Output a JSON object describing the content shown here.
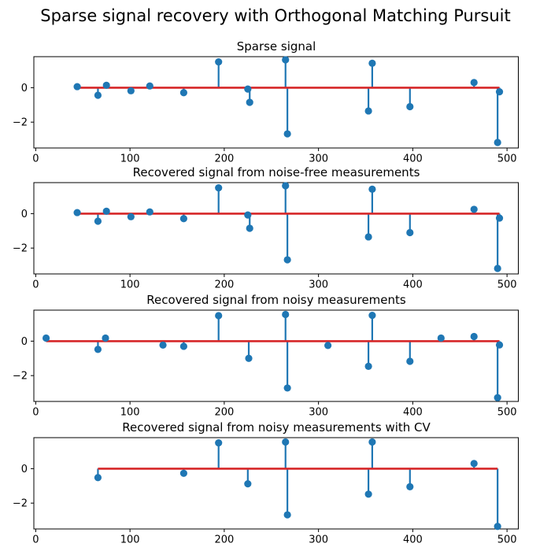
{
  "figure": {
    "suptitle": "Sparse signal recovery with Orthogonal Matching Pursuit"
  },
  "colors": {
    "stem": "#1f77b4",
    "baseline": "#d62728",
    "spine": "#000000"
  },
  "chart_data": [
    {
      "type": "scatter",
      "subtype": "stem",
      "title": "Sparse signal",
      "xlabel": "",
      "ylabel": "",
      "xlim": [
        -2,
        512
      ],
      "ylim": [
        -3.5,
        1.8
      ],
      "grid": false,
      "xticks": {
        "values": [
          0,
          100,
          200,
          300,
          400,
          500
        ],
        "labels": [
          "0",
          "100",
          "200",
          "300",
          "400",
          "500"
        ]
      },
      "yticks": {
        "values": [
          0,
          -2
        ],
        "labels": [
          "0",
          "−2"
        ]
      },
      "baseline": {
        "y": 0,
        "x_start": 44,
        "x_end": 492
      },
      "x": [
        44,
        66,
        75,
        101,
        121,
        157,
        194,
        225,
        227,
        265,
        267,
        353,
        357,
        397,
        465,
        490,
        492
      ],
      "y": [
        0.06,
        -0.44,
        0.14,
        -0.18,
        0.1,
        -0.29,
        1.5,
        -0.08,
        -0.85,
        1.62,
        -2.68,
        -1.35,
        1.42,
        -1.1,
        0.3,
        -3.18,
        -0.24
      ]
    },
    {
      "type": "scatter",
      "subtype": "stem",
      "title": "Recovered signal from noise-free measurements",
      "xlabel": "",
      "ylabel": "",
      "xlim": [
        -2,
        512
      ],
      "ylim": [
        -3.5,
        1.8
      ],
      "grid": false,
      "xticks": {
        "values": [
          0,
          100,
          200,
          300,
          400,
          500
        ],
        "labels": [
          "0",
          "100",
          "200",
          "300",
          "400",
          "500"
        ]
      },
      "yticks": {
        "values": [
          0,
          -2
        ],
        "labels": [
          "0",
          "−2"
        ]
      },
      "baseline": {
        "y": 0,
        "x_start": 44,
        "x_end": 492
      },
      "x": [
        44,
        66,
        75,
        101,
        121,
        157,
        194,
        225,
        227,
        265,
        267,
        353,
        357,
        397,
        465,
        490,
        492
      ],
      "y": [
        0.06,
        -0.44,
        0.14,
        -0.18,
        0.1,
        -0.29,
        1.5,
        -0.08,
        -0.85,
        1.62,
        -2.68,
        -1.35,
        1.42,
        -1.1,
        0.25,
        -3.18,
        -0.26
      ]
    },
    {
      "type": "scatter",
      "subtype": "stem",
      "title": "Recovered signal from noisy measurements",
      "xlabel": "",
      "ylabel": "",
      "xlim": [
        -2,
        512
      ],
      "ylim": [
        -3.5,
        1.8
      ],
      "grid": false,
      "xticks": {
        "values": [
          0,
          100,
          200,
          300,
          400,
          500
        ],
        "labels": [
          "0",
          "100",
          "200",
          "300",
          "400",
          "500"
        ]
      },
      "yticks": {
        "values": [
          0,
          -2
        ],
        "labels": [
          "0",
          "−2"
        ]
      },
      "baseline": {
        "y": 0,
        "x_start": 11,
        "x_end": 492
      },
      "x": [
        11,
        66,
        74,
        135,
        157,
        194,
        226,
        265,
        267,
        310,
        353,
        357,
        397,
        430,
        465,
        490,
        492
      ],
      "y": [
        0.18,
        -0.48,
        0.18,
        -0.23,
        -0.3,
        1.48,
        -1.0,
        1.55,
        -2.72,
        -0.25,
        -1.46,
        1.5,
        -1.17,
        0.18,
        0.27,
        -3.28,
        -0.22
      ]
    },
    {
      "type": "scatter",
      "subtype": "stem",
      "title": "Recovered signal from noisy measurements with CV",
      "xlabel": "",
      "ylabel": "",
      "xlim": [
        -2,
        512
      ],
      "ylim": [
        -3.5,
        1.8
      ],
      "grid": false,
      "xticks": {
        "values": [
          0,
          100,
          200,
          300,
          400,
          500
        ],
        "labels": [
          "0",
          "100",
          "200",
          "300",
          "400",
          "500"
        ]
      },
      "yticks": {
        "values": [
          0,
          -2
        ],
        "labels": [
          "0",
          "−2"
        ]
      },
      "baseline": {
        "y": 0,
        "x_start": 66,
        "x_end": 490
      },
      "x": [
        66,
        157,
        194,
        225,
        265,
        267,
        353,
        357,
        397,
        465,
        490
      ],
      "y": [
        -0.52,
        -0.27,
        1.5,
        -0.88,
        1.55,
        -2.68,
        -1.48,
        1.55,
        -1.05,
        0.3,
        -3.35
      ]
    }
  ]
}
